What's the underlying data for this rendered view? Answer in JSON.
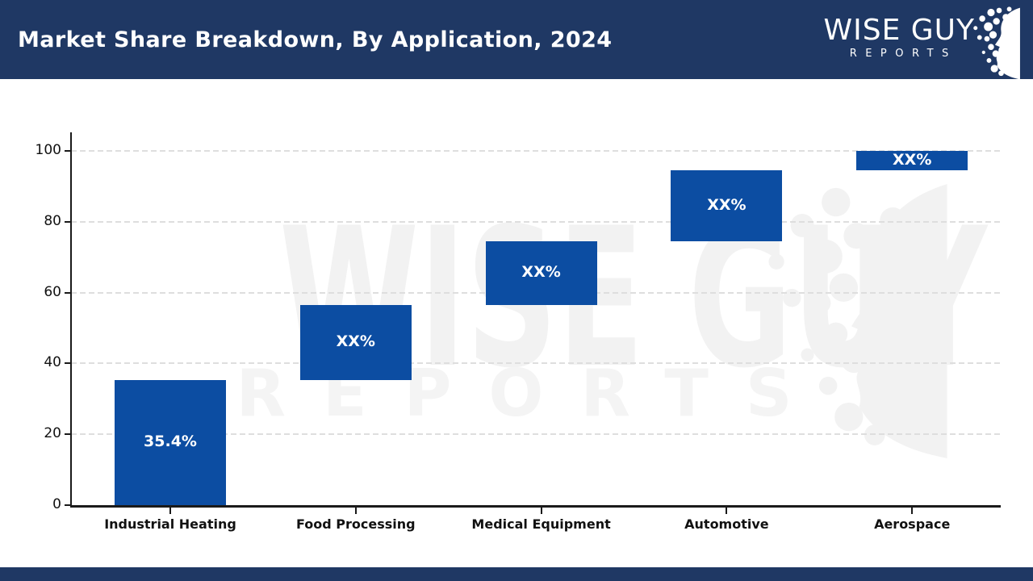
{
  "header": {
    "title": "Market Share Breakdown, By Application, 2024",
    "bg_color": "#1f3864",
    "logo": {
      "line1": "WISE GUY",
      "line2": "REPORTS",
      "face_icon": "dotted-head-profile"
    }
  },
  "watermark": {
    "line1": "WISE GUY",
    "line2": "REPORTS"
  },
  "footer": {
    "bg_color": "#1f3864"
  },
  "chart_data": {
    "type": "bar",
    "subtype": "floating-waterfall",
    "title": "Market Share Breakdown, By Application, 2024",
    "categories": [
      "Industrial Heating",
      "Food Processing",
      "Medical Equipment",
      "Automotive",
      "Aerospace"
    ],
    "series": [
      {
        "name": "Market Share",
        "segments": [
          {
            "category": "Industrial Heating",
            "start": 0,
            "end": 35.4,
            "label": "35.4%"
          },
          {
            "category": "Food Processing",
            "start": 35.4,
            "end": 56.6,
            "label": "XX%"
          },
          {
            "category": "Medical Equipment",
            "start": 56.6,
            "end": 74.4,
            "label": "XX%"
          },
          {
            "category": "Automotive",
            "start": 74.4,
            "end": 94.5,
            "label": "XX%"
          },
          {
            "category": "Aerospace",
            "start": 94.5,
            "end": 100,
            "label": "XX%"
          }
        ]
      }
    ],
    "xlabel": "",
    "ylabel": "",
    "ylim": [
      0,
      100
    ],
    "yticks": [
      0,
      20,
      40,
      60,
      80,
      100
    ],
    "grid": "horizontal-dashed",
    "legend": "none",
    "bar_color": "#0c4da2",
    "bar_label_color": "#ffffff",
    "axis_color": "#1a1a1a",
    "gridline_color": "#dedede"
  }
}
